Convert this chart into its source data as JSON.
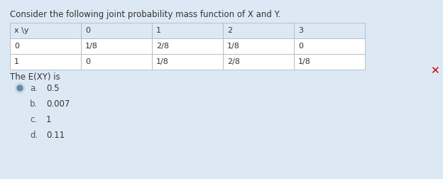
{
  "title": "Consider the following joint probability mass function of X and Y.",
  "title_fontsize": 8.5,
  "bg_color": "#dce9f5",
  "table_headers": [
    "x \\y",
    "0",
    "1",
    "2",
    "3"
  ],
  "table_rows": [
    [
      "0",
      "1/8",
      "2/8",
      "1/8",
      "0"
    ],
    [
      "1",
      "0",
      "1/8",
      "2/8",
      "1/8"
    ]
  ],
  "below_table_text": "The E(XY) is",
  "options": [
    {
      "label": "a.",
      "value": "0.5",
      "selected": true
    },
    {
      "label": "b.",
      "value": "0.007",
      "selected": false
    },
    {
      "label": "c.",
      "value": "1",
      "selected": false
    },
    {
      "label": "d.",
      "value": "0.11",
      "selected": false
    }
  ],
  "wrong_mark_color": "#cc0000",
  "cell_font_size": 8.0,
  "border_color": "#b0b8c0",
  "option_font_size": 8.5
}
